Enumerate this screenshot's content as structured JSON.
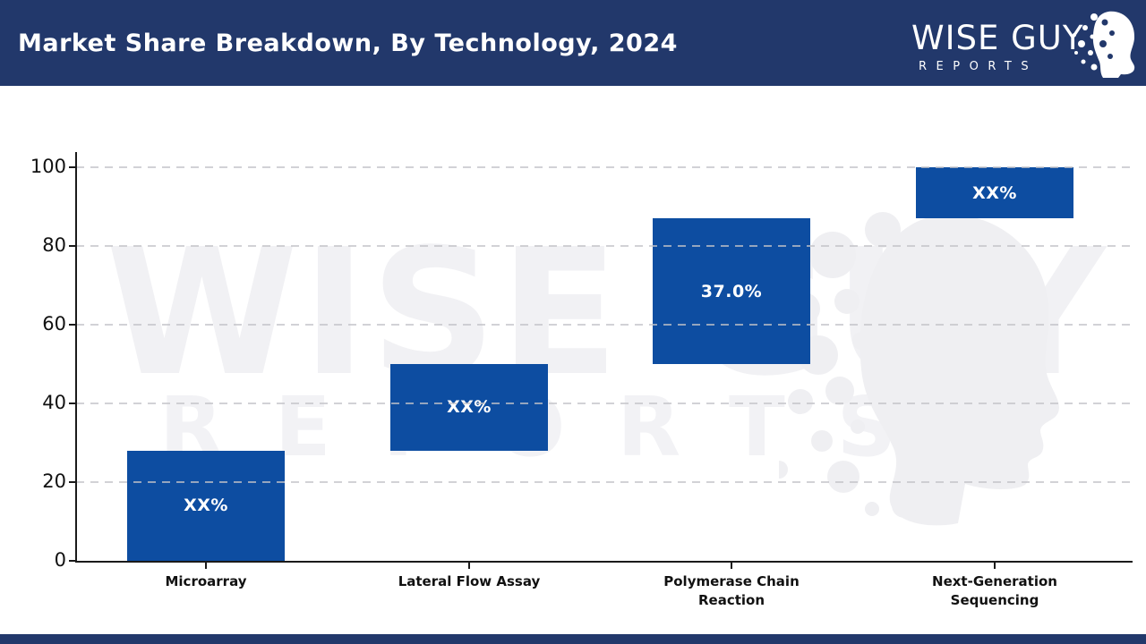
{
  "header": {
    "title": "Market Share Breakdown, By Technology, 2024",
    "logo": {
      "line1": "WISE GUY",
      "line2": "REPORTS"
    }
  },
  "watermark": {
    "line1": "WISE GUY",
    "line2": "REPORTS"
  },
  "colors": {
    "header_bg": "#22386B",
    "footer_bg": "#22386B",
    "bar": "#0D4DA1",
    "bar_label_text": "#FFFFFF",
    "axis": "#1A1A1A",
    "gridline": "#C8C8CD",
    "watermark": "#F1F1F4",
    "plot_bg": "#FFFFFF",
    "title_text": "#FFFFFF",
    "tick_text": "#111111"
  },
  "chart_data": {
    "type": "bar",
    "variant": "floating-segment-waterfall",
    "title": "Market Share Breakdown, By Technology, 2024",
    "categories": [
      "Microarray",
      "Lateral Flow Assay",
      "Polymerase Chain Reaction",
      "Next-Generation Sequencing"
    ],
    "segments": [
      {
        "category": "Microarray",
        "start": 0,
        "end": 28,
        "label": "XX%"
      },
      {
        "category": "Lateral Flow Assay",
        "start": 28,
        "end": 50,
        "label": "XX%"
      },
      {
        "category": "Polymerase Chain Reaction",
        "start": 50,
        "end": 87,
        "label": "37.0%",
        "value": 37.0
      },
      {
        "category": "Next-Generation Sequencing",
        "start": 87,
        "end": 100,
        "label": "XX%"
      }
    ],
    "xlabel": "",
    "ylabel": "",
    "ylim": [
      0,
      100
    ],
    "yticks": [
      0,
      20,
      40,
      60,
      80,
      100
    ],
    "grid": "dashed-horizontal",
    "legend": "none"
  }
}
